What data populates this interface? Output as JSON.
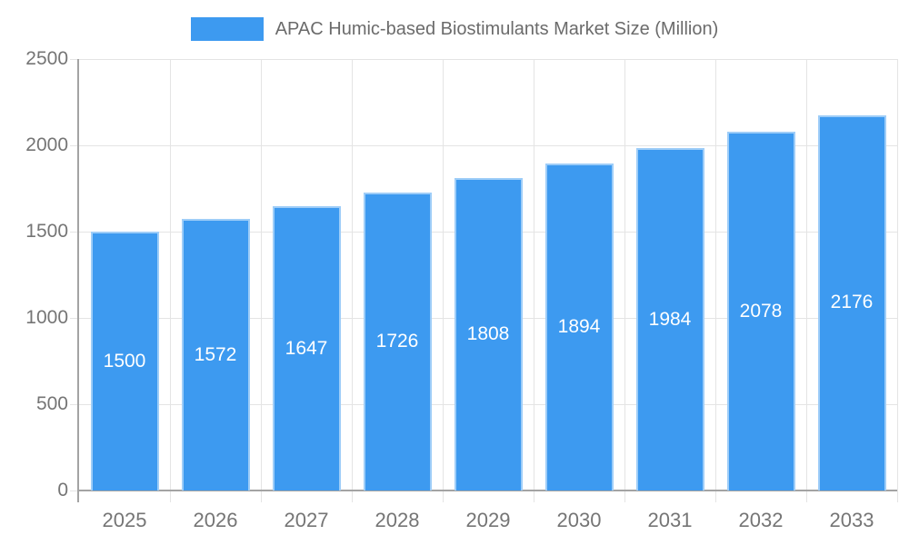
{
  "chart_data": {
    "type": "bar",
    "title": "APAC Humic-based Biostimulants Market Size (Million)",
    "legend_label": "APAC Humic-based Biostimulants Market Size (Million)",
    "legend_position": "top",
    "categories": [
      "2025",
      "2026",
      "2027",
      "2028",
      "2029",
      "2030",
      "2031",
      "2032",
      "2033"
    ],
    "values": [
      1500,
      1572,
      1647,
      1726,
      1808,
      1894,
      1984,
      2078,
      2176
    ],
    "xlabel": "",
    "ylabel": "",
    "ylim": [
      0,
      2500
    ],
    "yticks": [
      0,
      500,
      1000,
      1500,
      2000,
      2500
    ],
    "grid": true,
    "colors": {
      "bar": "#3D9AF0",
      "bar_border": "rgba(255,255,255,0.5)",
      "grid": "#E4E4E4",
      "axis": "#A3A3A3",
      "tick_text": "#757575",
      "title_text": "#6B6B6B",
      "value_text": "#FFFFFF"
    }
  }
}
